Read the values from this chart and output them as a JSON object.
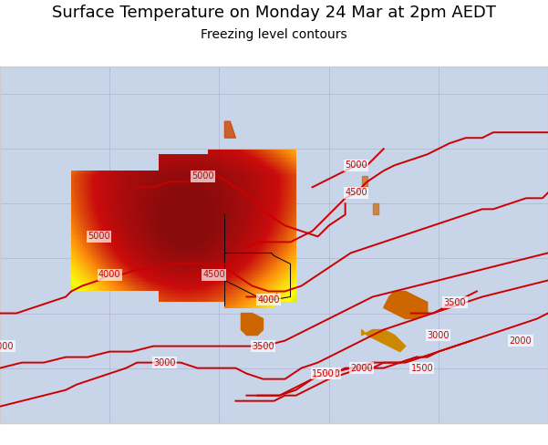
{
  "title": "Surface Temperature on Monday 24 Mar at 2pm AEDT",
  "subtitle": "Freezing level contours",
  "title_fontsize": 13,
  "subtitle_fontsize": 10,
  "background_color": "#ffffff",
  "ocean_color": "#c8d4e8",
  "border_color": "#cccccc",
  "fig_width": 6.01,
  "fig_height": 4.88,
  "dpi": 100,
  "contour_color": "#cc0000",
  "contour_linewidth": 1.4,
  "contour_label_fontsize": 7,
  "grid_color": "#aaaacc",
  "grid_linewidth": 0.4,
  "lon_min": 100,
  "lon_max": 200,
  "lat_min": -60,
  "lat_max": 5
}
